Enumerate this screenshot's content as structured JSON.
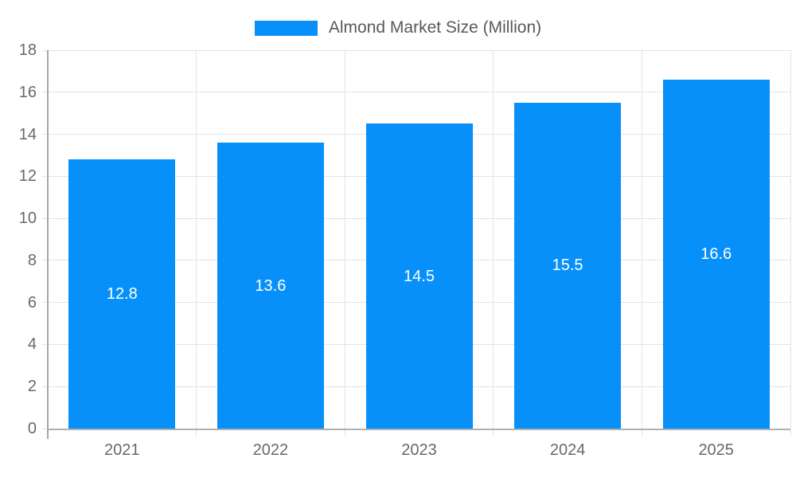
{
  "chart_data": {
    "type": "bar",
    "title": "Almond Market Size (Million)",
    "categories": [
      "2021",
      "2022",
      "2023",
      "2024",
      "2025"
    ],
    "series": [
      {
        "name": "Almond Market Size (Million)",
        "values": [
          12.8,
          13.6,
          14.5,
          15.5,
          16.6
        ]
      }
    ],
    "data_labels": [
      "12.8",
      "13.6",
      "14.5",
      "15.5",
      "16.6"
    ],
    "xlabel": "",
    "ylabel": "",
    "ylim": [
      0,
      18
    ],
    "ytick_step": 2,
    "ytick_labels": [
      "0",
      "2",
      "4",
      "6",
      "8",
      "10",
      "12",
      "14",
      "16",
      "18"
    ],
    "grid": true,
    "legend_position": "top"
  },
  "legend": {
    "label": "Almond Market Size (Million)"
  },
  "colors": {
    "bar": "#0890fa",
    "bar_label": "#ffffff",
    "axis_text": "#696969",
    "legend_text": "#595959",
    "gridline": "#e3e3e3",
    "x_axis_line": "#b0b0b0",
    "y_axis_line": "#a6a6a6",
    "background": "#ffffff"
  }
}
